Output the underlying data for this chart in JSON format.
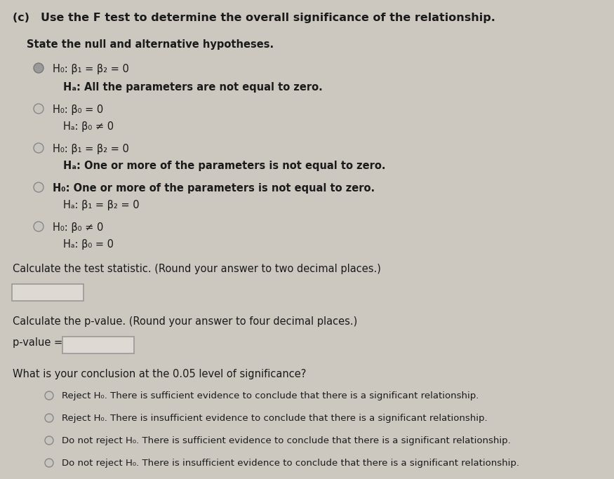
{
  "bg_color": "#ccc8c0",
  "text_color": "#1a1a1a",
  "box_color": "#d8d4cc",
  "box_edge_color": "#999999",
  "radio_filled_color": "#a0a0a0",
  "radio_empty_color": "#c8c5be",
  "radio_edge_color": "#888888",
  "title_prefix": "(c)  ",
  "title_rest": "Use the F test to determine the overall significance of the relationship.",
  "subtitle": "State the null and alternative hypotheses.",
  "options": [
    {
      "filled": true,
      "line1_plain": "H₀: β₁ = β₂ = 0",
      "line2_plain": "Hₐ: All the parameters are not equal to zero.",
      "line2_bold": true
    },
    {
      "filled": false,
      "line1_plain": "H₀: β₀ = 0",
      "line2_plain": "Hₐ: β₀ ≠ 0",
      "line2_bold": false
    },
    {
      "filled": false,
      "line1_plain": "H₀: β₁ = β₂ = 0",
      "line2_plain": "Hₐ: One or more of the parameters is not equal to zero.",
      "line2_bold": true
    },
    {
      "filled": false,
      "line1_plain": "H₀: One or more of the parameters is not equal to zero.",
      "line1_bold": true,
      "line2_plain": "Hₐ: β₁ = β₂ = 0",
      "line2_bold": false
    },
    {
      "filled": false,
      "line1_plain": "H₀: β₀ ≠ 0",
      "line2_plain": "Hₐ: β₀ = 0",
      "line2_bold": false
    }
  ],
  "calc_stat_label": "Calculate the test statistic. (Round your answer to two decimal places.)",
  "pvalue_label": "Calculate the p-value. (Round your answer to four decimal places.)",
  "pvalue_prefix": "p-value = ",
  "conclusion_label": "What is your conclusion at the 0.05 level of significance?",
  "conclusion_options": [
    "Reject H₀. There is sufficient evidence to conclude that there is a significant relationship.",
    "Reject H₀. There is insufficient evidence to conclude that there is a significant relationship.",
    "Do not reject H₀. There is sufficient evidence to conclude that there is a significant relationship.",
    "Do not reject H₀. There is insufficient evidence to conclude that there is a significant relationship."
  ]
}
